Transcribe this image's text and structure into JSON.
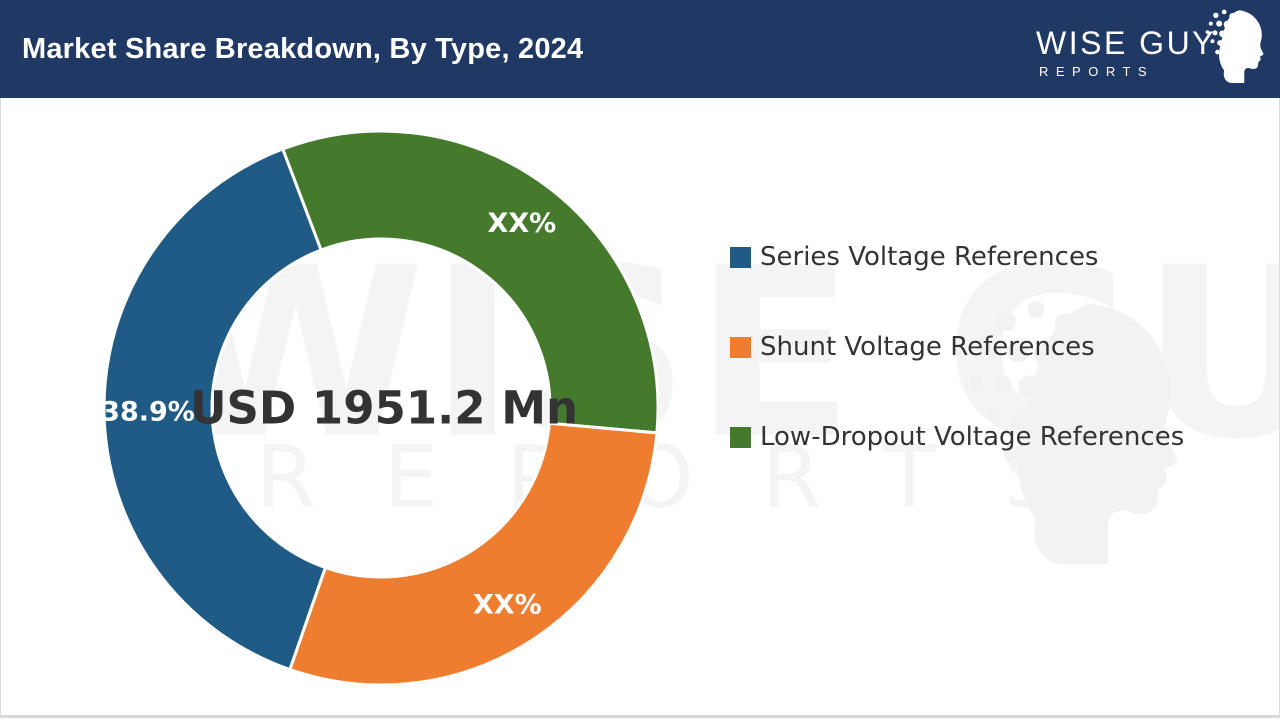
{
  "header": {
    "title": "Market Share Breakdown, By Type, 2024",
    "bg_color": "#1f3864",
    "logo": {
      "line1": "WISE GUY",
      "line2": "REPORTS"
    }
  },
  "watermark": {
    "line1": "WISE GUY",
    "line2": "REPORTS"
  },
  "legend": {
    "items": [
      {
        "label": "Series Voltage References",
        "color": "#1f5b85"
      },
      {
        "label": "Shunt Voltage References",
        "color": "#ee7d30"
      },
      {
        "label": "Low-Dropout Voltage References",
        "color": "#45792c"
      }
    ]
  },
  "chart_data": {
    "type": "pie",
    "subtype": "donut",
    "title": "Market Share Breakdown, By Type, 2024",
    "center_text": "USD 1951.2 Mn",
    "start_angle_deg": 109.2,
    "direction": "clockwise",
    "inner_radius_ratio": 0.61,
    "slices": [
      {
        "name": "Series Voltage References",
        "value": 38.9,
        "label": "38.9%",
        "color": "#1f5b85"
      },
      {
        "name": "Low-Dropout Voltage References",
        "value": 32.2,
        "label": "XX%",
        "color": "#45792c"
      },
      {
        "name": "Shunt Voltage References",
        "value": 28.9,
        "label": "XX%",
        "color": "#ee7d30"
      }
    ]
  }
}
